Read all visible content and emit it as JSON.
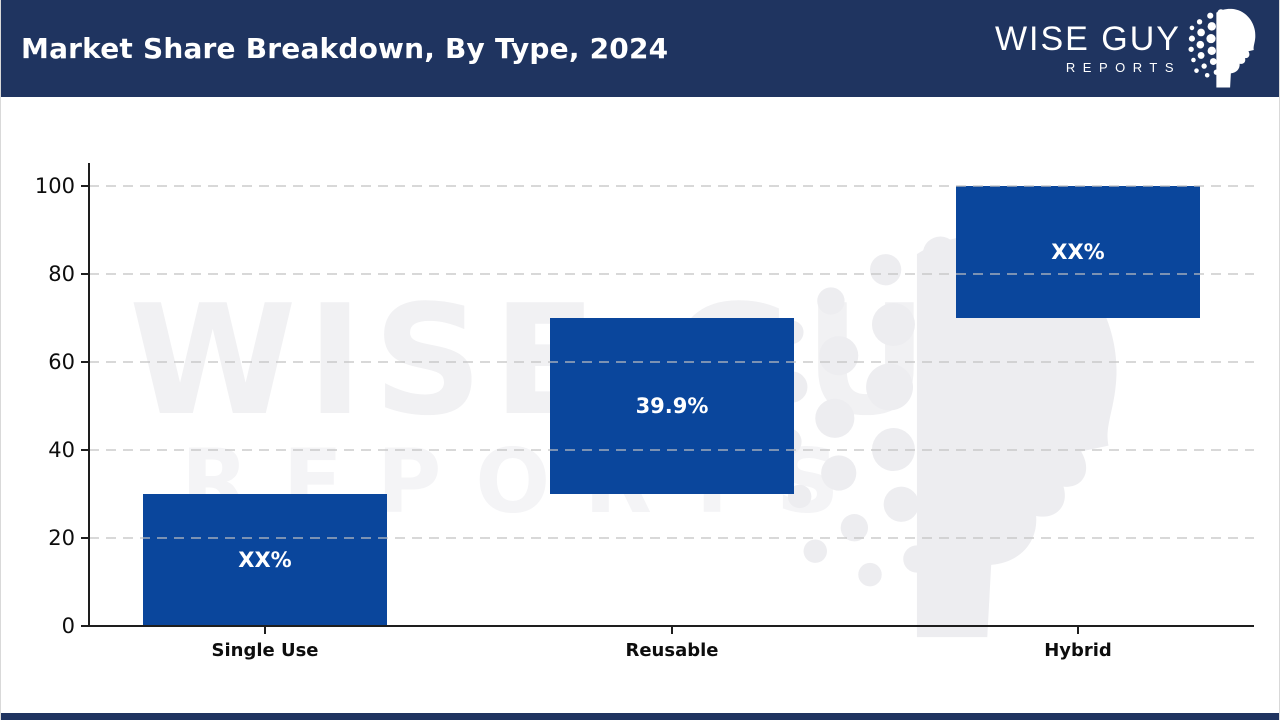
{
  "header": {
    "title": "Market Share Breakdown, By Type, 2024",
    "logo_line1": "WISE GUY",
    "logo_line2": "REPORTS",
    "bg_color": "#1f3460"
  },
  "watermark": {
    "line1": "WISE GUY",
    "line2": "REPORTS"
  },
  "chart_data": {
    "type": "bar",
    "subtype": "floating-segment-bars",
    "title": "Market Share Breakdown, By Type, 2024",
    "categories": [
      "Single Use",
      "Reusable",
      "Hybrid"
    ],
    "bars": [
      {
        "category": "Single Use",
        "start": 0,
        "end": 30,
        "value_label": "XX%"
      },
      {
        "category": "Reusable",
        "start": 30,
        "end": 69.9,
        "value_label": "39.9%"
      },
      {
        "category": "Hybrid",
        "start": 69.9,
        "end": 100,
        "value_label": "XX%"
      }
    ],
    "yticks": [
      0,
      20,
      40,
      60,
      80,
      100
    ],
    "ylim": [
      0,
      105
    ],
    "xlabel": "",
    "ylabel": "",
    "grid": {
      "axis": "y",
      "style": "dashed",
      "on_top": true
    },
    "bar_color": "#0a469c",
    "bar_label_color": "#ffffff",
    "legend": "none"
  }
}
